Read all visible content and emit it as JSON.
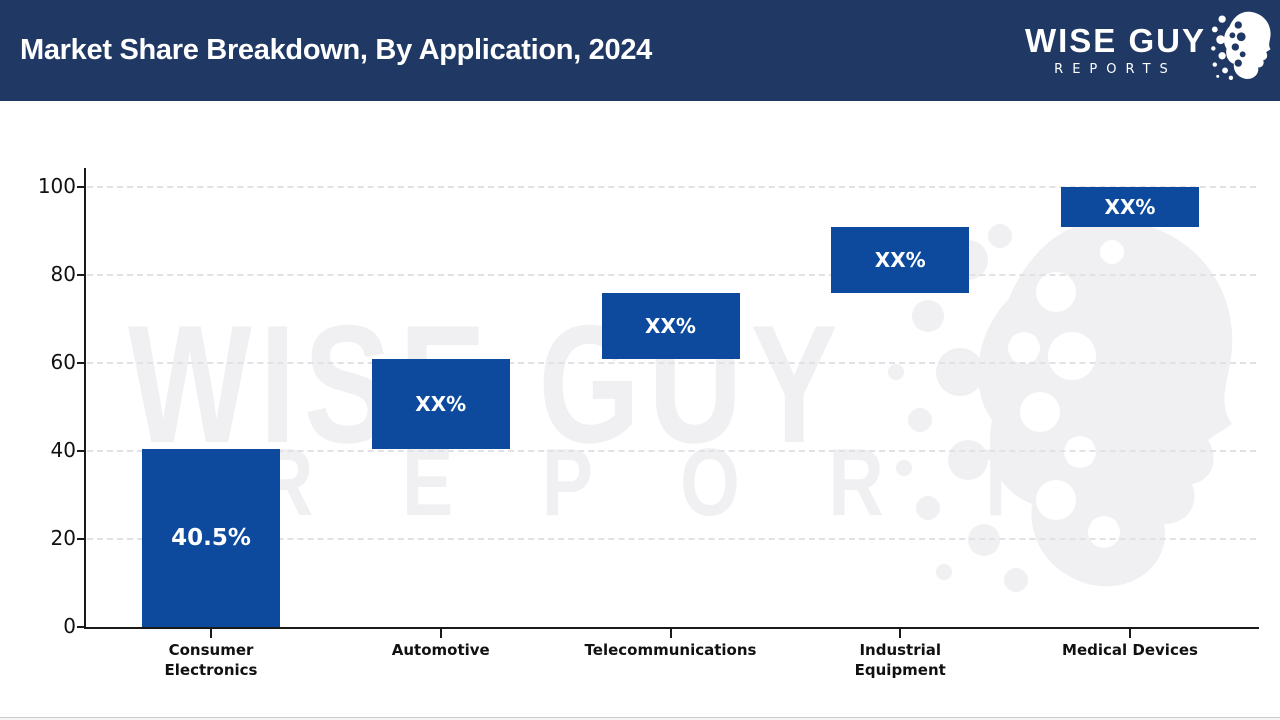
{
  "header": {
    "title": "Market Share Breakdown, By Application, 2024",
    "bg_color": "#1f3864",
    "logo": {
      "line1": "WISE GUY",
      "line2": "REPORTS"
    }
  },
  "watermark": {
    "line1": "WISE GUY",
    "line2": "R E P O R T S"
  },
  "chart_data": {
    "type": "bar",
    "subtype": "waterfall",
    "title": "Market Share Breakdown, By Application, 2024",
    "categories": [
      "Consumer Electronics",
      "Automotive",
      "Telecommunications",
      "Industrial Equipment",
      "Medical Devices"
    ],
    "category_lines": [
      [
        "Consumer",
        "Electronics"
      ],
      [
        "Automotive"
      ],
      [
        "Telecommunications"
      ],
      [
        "Industrial",
        "Equipment"
      ],
      [
        "Medical Devices"
      ]
    ],
    "segments": [
      {
        "category": "Consumer Electronics",
        "start": 0,
        "end": 40.5,
        "label": "40.5%"
      },
      {
        "category": "Automotive",
        "start": 40.5,
        "end": 61,
        "label": "XX%"
      },
      {
        "category": "Telecommunications",
        "start": 61,
        "end": 76,
        "label": "XX%"
      },
      {
        "category": "Industrial Equipment",
        "start": 76,
        "end": 91,
        "label": "XX%"
      },
      {
        "category": "Medical Devices",
        "start": 91,
        "end": 100,
        "label": "XX%"
      }
    ],
    "ylim": [
      0,
      100
    ],
    "yticks": [
      0,
      20,
      40,
      60,
      80,
      100
    ],
    "xlabel": "",
    "ylabel": "",
    "grid": "horizontal-dashed",
    "legend": null,
    "bar_color": "#0d4a9e",
    "bar_label_color": "#ffffff",
    "axis_color": "#1a1a1a",
    "gridline_color": "#e2e2e6"
  }
}
